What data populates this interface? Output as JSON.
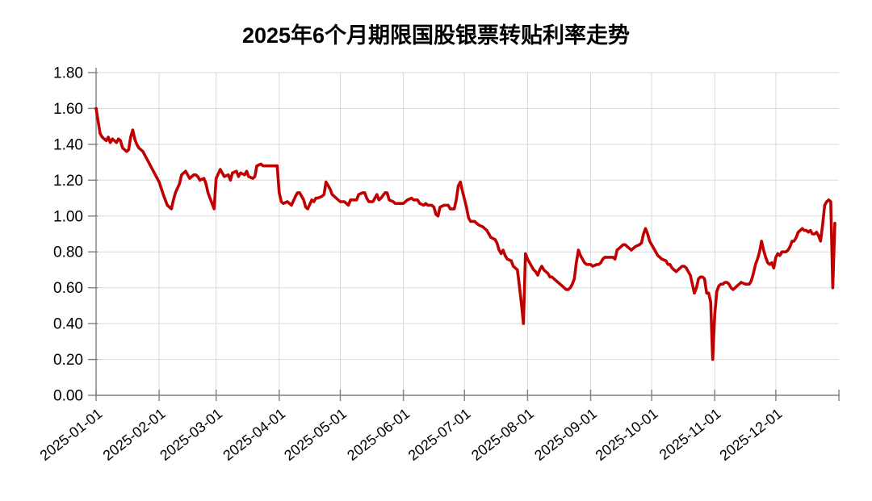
{
  "page": {
    "background": "#ffffff"
  },
  "colors": {
    "line": "#c00000",
    "grid": "#d9d9d9",
    "axis": "#7f7f7f",
    "text": "#000000"
  },
  "chart_data": {
    "type": "line",
    "title": "2025年6个月期限国股银票转贴利率走势",
    "grid": true,
    "legend": "none",
    "x_axis": {
      "unit": "day offset from 2025-01-01",
      "domain_days": [
        0,
        365
      ],
      "tick_days": [
        0,
        31,
        59,
        90,
        120,
        151,
        181,
        212,
        243,
        273,
        304,
        334
      ],
      "tick_labels": [
        "2025-01-01",
        "2025-02-01",
        "2025-03-01",
        "2025-04-01",
        "2025-05-01",
        "2025-06-01",
        "2025-07-01",
        "2025-08-01",
        "2025-09-01",
        "2025-10-01",
        "2025-11-01",
        "2025-12-01"
      ],
      "label_rotation_deg": -38
    },
    "y_axis": {
      "min": 0,
      "max": 1.8,
      "step": 0.2,
      "decimals": 2,
      "tick_labels": [
        "0.00",
        "0.20",
        "0.40",
        "0.60",
        "0.80",
        "1.00",
        "1.20",
        "1.40",
        "1.60",
        "1.80"
      ]
    },
    "series": [
      {
        "color": "#c00000",
        "points": [
          [
            0,
            1.6
          ],
          [
            2,
            1.46
          ],
          [
            3,
            1.44
          ],
          [
            5,
            1.42
          ],
          [
            6,
            1.44
          ],
          [
            7,
            1.41
          ],
          [
            8,
            1.43
          ],
          [
            10,
            1.41
          ],
          [
            11,
            1.43
          ],
          [
            12,
            1.42
          ],
          [
            13,
            1.38
          ],
          [
            15,
            1.36
          ],
          [
            16,
            1.37
          ],
          [
            17,
            1.44
          ],
          [
            18,
            1.48
          ],
          [
            19,
            1.43
          ],
          [
            20,
            1.4
          ],
          [
            21,
            1.38
          ],
          [
            23,
            1.36
          ],
          [
            31,
            1.19
          ],
          [
            33,
            1.12
          ],
          [
            35,
            1.06
          ],
          [
            37,
            1.04
          ],
          [
            38,
            1.09
          ],
          [
            39,
            1.13
          ],
          [
            41,
            1.18
          ],
          [
            42,
            1.23
          ],
          [
            44,
            1.25
          ],
          [
            45,
            1.23
          ],
          [
            46,
            1.21
          ],
          [
            48,
            1.23
          ],
          [
            49,
            1.23
          ],
          [
            50,
            1.22
          ],
          [
            51,
            1.2
          ],
          [
            53,
            1.21
          ],
          [
            54,
            1.18
          ],
          [
            55,
            1.13
          ],
          [
            58,
            1.04
          ],
          [
            59,
            1.21
          ],
          [
            61,
            1.26
          ],
          [
            62,
            1.24
          ],
          [
            63,
            1.22
          ],
          [
            65,
            1.23
          ],
          [
            66,
            1.2
          ],
          [
            67,
            1.24
          ],
          [
            69,
            1.25
          ],
          [
            70,
            1.22
          ],
          [
            71,
            1.24
          ],
          [
            73,
            1.23
          ],
          [
            74,
            1.25
          ],
          [
            75,
            1.22
          ],
          [
            77,
            1.21
          ],
          [
            78,
            1.22
          ],
          [
            79,
            1.28
          ],
          [
            81,
            1.29
          ],
          [
            82,
            1.28
          ],
          [
            84,
            1.28
          ],
          [
            86,
            1.28
          ],
          [
            88,
            1.28
          ],
          [
            89,
            1.28
          ],
          [
            90,
            1.13
          ],
          [
            91,
            1.08
          ],
          [
            92,
            1.07
          ],
          [
            94,
            1.08
          ],
          [
            95,
            1.07
          ],
          [
            96,
            1.06
          ],
          [
            98,
            1.11
          ],
          [
            99,
            1.13
          ],
          [
            100,
            1.13
          ],
          [
            102,
            1.09
          ],
          [
            103,
            1.05
          ],
          [
            104,
            1.04
          ],
          [
            106,
            1.09
          ],
          [
            107,
            1.08
          ],
          [
            108,
            1.1
          ],
          [
            109,
            1.1
          ],
          [
            111,
            1.11
          ],
          [
            112,
            1.12
          ],
          [
            113,
            1.19
          ],
          [
            115,
            1.15
          ],
          [
            116,
            1.12
          ],
          [
            117,
            1.11
          ],
          [
            119,
            1.09
          ],
          [
            120,
            1.08
          ],
          [
            122,
            1.08
          ],
          [
            123,
            1.07
          ],
          [
            124,
            1.06
          ],
          [
            125,
            1.09
          ],
          [
            127,
            1.09
          ],
          [
            128,
            1.09
          ],
          [
            129,
            1.12
          ],
          [
            131,
            1.13
          ],
          [
            132,
            1.13
          ],
          [
            133,
            1.1
          ],
          [
            134,
            1.08
          ],
          [
            136,
            1.08
          ],
          [
            137,
            1.1
          ],
          [
            138,
            1.12
          ],
          [
            139,
            1.09
          ],
          [
            140,
            1.1
          ],
          [
            142,
            1.13
          ],
          [
            143,
            1.13
          ],
          [
            144,
            1.09
          ],
          [
            146,
            1.08
          ],
          [
            147,
            1.07
          ],
          [
            149,
            1.07
          ],
          [
            151,
            1.07
          ],
          [
            153,
            1.09
          ],
          [
            155,
            1.1
          ],
          [
            156,
            1.09
          ],
          [
            158,
            1.09
          ],
          [
            159,
            1.07
          ],
          [
            161,
            1.06
          ],
          [
            162,
            1.07
          ],
          [
            163,
            1.06
          ],
          [
            165,
            1.06
          ],
          [
            166,
            1.05
          ],
          [
            167,
            1.01
          ],
          [
            168,
            1.0
          ],
          [
            169,
            1.05
          ],
          [
            171,
            1.06
          ],
          [
            172,
            1.06
          ],
          [
            173,
            1.06
          ],
          [
            174,
            1.04
          ],
          [
            176,
            1.04
          ],
          [
            177,
            1.09
          ],
          [
            178,
            1.17
          ],
          [
            179,
            1.19
          ],
          [
            180,
            1.14
          ],
          [
            182,
            1.05
          ],
          [
            183,
            0.99
          ],
          [
            184,
            0.97
          ],
          [
            186,
            0.97
          ],
          [
            187,
            0.96
          ],
          [
            188,
            0.95
          ],
          [
            190,
            0.94
          ],
          [
            191,
            0.93
          ],
          [
            192,
            0.92
          ],
          [
            193,
            0.9
          ],
          [
            194,
            0.88
          ],
          [
            196,
            0.87
          ],
          [
            197,
            0.85
          ],
          [
            198,
            0.81
          ],
          [
            199,
            0.79
          ],
          [
            200,
            0.81
          ],
          [
            201,
            0.78
          ],
          [
            202,
            0.76
          ],
          [
            204,
            0.75
          ],
          [
            205,
            0.72
          ],
          [
            206,
            0.71
          ],
          [
            207,
            0.7
          ],
          [
            208,
            0.61
          ],
          [
            209,
            0.51
          ],
          [
            210,
            0.4
          ],
          [
            211,
            0.79
          ],
          [
            212,
            0.76
          ],
          [
            213,
            0.74
          ],
          [
            214,
            0.72
          ],
          [
            215,
            0.7
          ],
          [
            216,
            0.69
          ],
          [
            217,
            0.67
          ],
          [
            218,
            0.7
          ],
          [
            219,
            0.72
          ],
          [
            220,
            0.7
          ],
          [
            221,
            0.69
          ],
          [
            222,
            0.68
          ],
          [
            223,
            0.66
          ],
          [
            224,
            0.66
          ],
          [
            225,
            0.65
          ],
          [
            226,
            0.64
          ],
          [
            227,
            0.63
          ],
          [
            228,
            0.62
          ],
          [
            229,
            0.61
          ],
          [
            230,
            0.6
          ],
          [
            231,
            0.59
          ],
          [
            232,
            0.59
          ],
          [
            233,
            0.6
          ],
          [
            234,
            0.62
          ],
          [
            235,
            0.65
          ],
          [
            236,
            0.74
          ],
          [
            237,
            0.81
          ],
          [
            238,
            0.78
          ],
          [
            239,
            0.76
          ],
          [
            240,
            0.74
          ],
          [
            241,
            0.73
          ],
          [
            243,
            0.73
          ],
          [
            244,
            0.72
          ],
          [
            246,
            0.73
          ],
          [
            247,
            0.73
          ],
          [
            248,
            0.74
          ],
          [
            249,
            0.76
          ],
          [
            250,
            0.77
          ],
          [
            251,
            0.77
          ],
          [
            253,
            0.77
          ],
          [
            254,
            0.77
          ],
          [
            255,
            0.76
          ],
          [
            256,
            0.81
          ],
          [
            257,
            0.82
          ],
          [
            258,
            0.83
          ],
          [
            259,
            0.84
          ],
          [
            260,
            0.84
          ],
          [
            261,
            0.83
          ],
          [
            262,
            0.82
          ],
          [
            263,
            0.81
          ],
          [
            264,
            0.82
          ],
          [
            265,
            0.83
          ],
          [
            267,
            0.84
          ],
          [
            268,
            0.85
          ],
          [
            269,
            0.9
          ],
          [
            270,
            0.93
          ],
          [
            271,
            0.9
          ],
          [
            272,
            0.86
          ],
          [
            273,
            0.84
          ],
          [
            274,
            0.82
          ],
          [
            275,
            0.8
          ],
          [
            276,
            0.78
          ],
          [
            277,
            0.77
          ],
          [
            278,
            0.76
          ],
          [
            280,
            0.75
          ],
          [
            281,
            0.73
          ],
          [
            282,
            0.73
          ],
          [
            283,
            0.71
          ],
          [
            284,
            0.7
          ],
          [
            285,
            0.69
          ],
          [
            286,
            0.7
          ],
          [
            287,
            0.71
          ],
          [
            288,
            0.72
          ],
          [
            289,
            0.72
          ],
          [
            290,
            0.71
          ],
          [
            291,
            0.69
          ],
          [
            292,
            0.67
          ],
          [
            293,
            0.62
          ],
          [
            294,
            0.57
          ],
          [
            295,
            0.6
          ],
          [
            296,
            0.65
          ],
          [
            297,
            0.66
          ],
          [
            298,
            0.66
          ],
          [
            299,
            0.65
          ],
          [
            300,
            0.57
          ],
          [
            301,
            0.57
          ],
          [
            302,
            0.52
          ],
          [
            303,
            0.2
          ],
          [
            304,
            0.45
          ],
          [
            305,
            0.58
          ],
          [
            306,
            0.61
          ],
          [
            307,
            0.62
          ],
          [
            308,
            0.62
          ],
          [
            309,
            0.63
          ],
          [
            310,
            0.63
          ],
          [
            311,
            0.62
          ],
          [
            312,
            0.6
          ],
          [
            313,
            0.59
          ],
          [
            314,
            0.6
          ],
          [
            315,
            0.61
          ],
          [
            316,
            0.62
          ],
          [
            317,
            0.63
          ],
          [
            319,
            0.62
          ],
          [
            320,
            0.62
          ],
          [
            321,
            0.62
          ],
          [
            322,
            0.64
          ],
          [
            323,
            0.68
          ],
          [
            324,
            0.73
          ],
          [
            325,
            0.76
          ],
          [
            326,
            0.8
          ],
          [
            327,
            0.86
          ],
          [
            328,
            0.81
          ],
          [
            329,
            0.77
          ],
          [
            330,
            0.74
          ],
          [
            331,
            0.73
          ],
          [
            332,
            0.74
          ],
          [
            333,
            0.71
          ],
          [
            334,
            0.77
          ],
          [
            335,
            0.79
          ],
          [
            336,
            0.78
          ],
          [
            337,
            0.8
          ],
          [
            338,
            0.8
          ],
          [
            339,
            0.8
          ],
          [
            340,
            0.81
          ],
          [
            341,
            0.83
          ],
          [
            342,
            0.86
          ],
          [
            343,
            0.86
          ],
          [
            344,
            0.88
          ],
          [
            345,
            0.91
          ],
          [
            346,
            0.92
          ],
          [
            347,
            0.93
          ],
          [
            348,
            0.92
          ],
          [
            349,
            0.92
          ],
          [
            350,
            0.91
          ],
          [
            351,
            0.92
          ],
          [
            352,
            0.9
          ],
          [
            353,
            0.9
          ],
          [
            354,
            0.91
          ],
          [
            355,
            0.89
          ],
          [
            356,
            0.86
          ],
          [
            357,
            0.95
          ],
          [
            358,
            1.06
          ],
          [
            359,
            1.08
          ],
          [
            360,
            1.09
          ],
          [
            361,
            1.08
          ],
          [
            362,
            0.6
          ],
          [
            363,
            0.96
          ]
        ]
      }
    ]
  }
}
